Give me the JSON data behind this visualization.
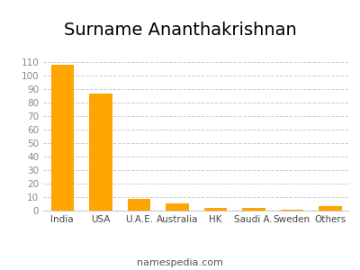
{
  "title": "Surname Ananthakrishnan",
  "categories": [
    "India",
    "USA",
    "U.A.E.",
    "Australia",
    "HK",
    "Saudi A.",
    "Sweden",
    "Others"
  ],
  "values": [
    108,
    87,
    8.5,
    5.5,
    2,
    2,
    1,
    3.5
  ],
  "bar_color": "#FFA500",
  "ylim": [
    0,
    120
  ],
  "yticks": [
    0,
    10,
    20,
    30,
    40,
    50,
    60,
    70,
    80,
    90,
    100,
    110
  ],
  "grid_color": "#cccccc",
  "background_color": "#ffffff",
  "title_fontsize": 14,
  "tick_fontsize": 7.5,
  "watermark": "namespedia.com",
  "watermark_fontsize": 8,
  "watermark_color": "#555555"
}
